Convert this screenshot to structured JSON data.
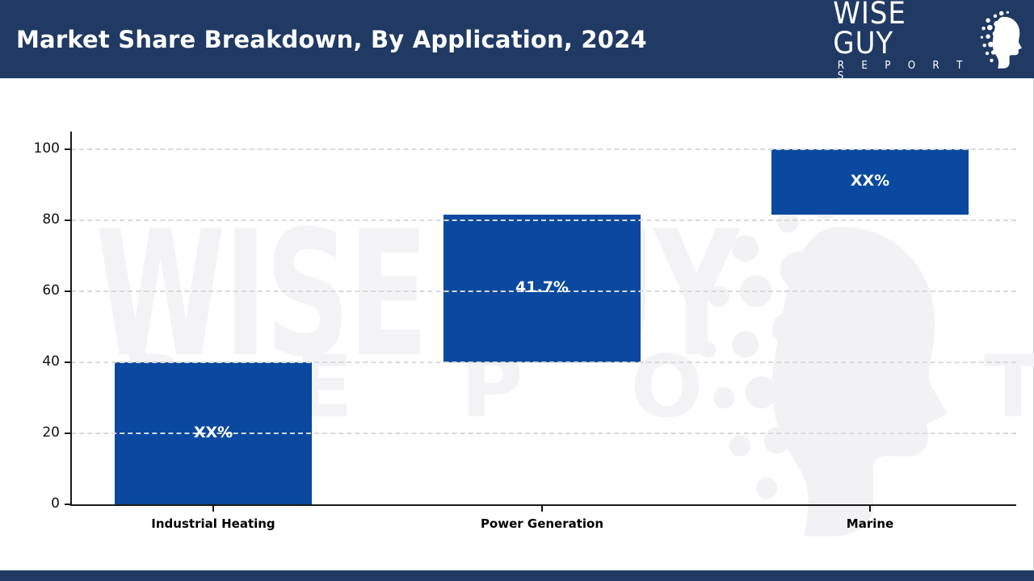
{
  "header": {
    "title": "Market Share Breakdown, By Application, 2024",
    "bg_color": "#203a64",
    "logo": {
      "line1": "WISE GUY",
      "line2": "R E P O R T S"
    }
  },
  "watermark": {
    "line1": "WISE GUY",
    "line2": "R E P O R T S"
  },
  "footer": {
    "bg_color": "#203a64"
  },
  "chart_data": {
    "type": "bar",
    "variant": "floating-waterfall",
    "title": "Market Share Breakdown, By Application, 2024",
    "categories": [
      "Industrial Heating",
      "Power Generation",
      "Marine"
    ],
    "bars": [
      {
        "category": "Industrial Heating",
        "base": 0,
        "top": 40,
        "label": "XX%"
      },
      {
        "category": "Power Generation",
        "base": 40,
        "top": 81.7,
        "label": "41.7%"
      },
      {
        "category": "Marine",
        "base": 81.7,
        "top": 100,
        "label": "XX%"
      }
    ],
    "xlabel": "",
    "ylabel": "",
    "yticks": [
      0,
      20,
      40,
      60,
      80,
      100
    ],
    "ylim": [
      0,
      100
    ],
    "grid": "horizontal-dashed-drawn-above-bars",
    "legend": "none",
    "bar_color": "#0a499f",
    "grid_color": "#d9d9d9"
  }
}
